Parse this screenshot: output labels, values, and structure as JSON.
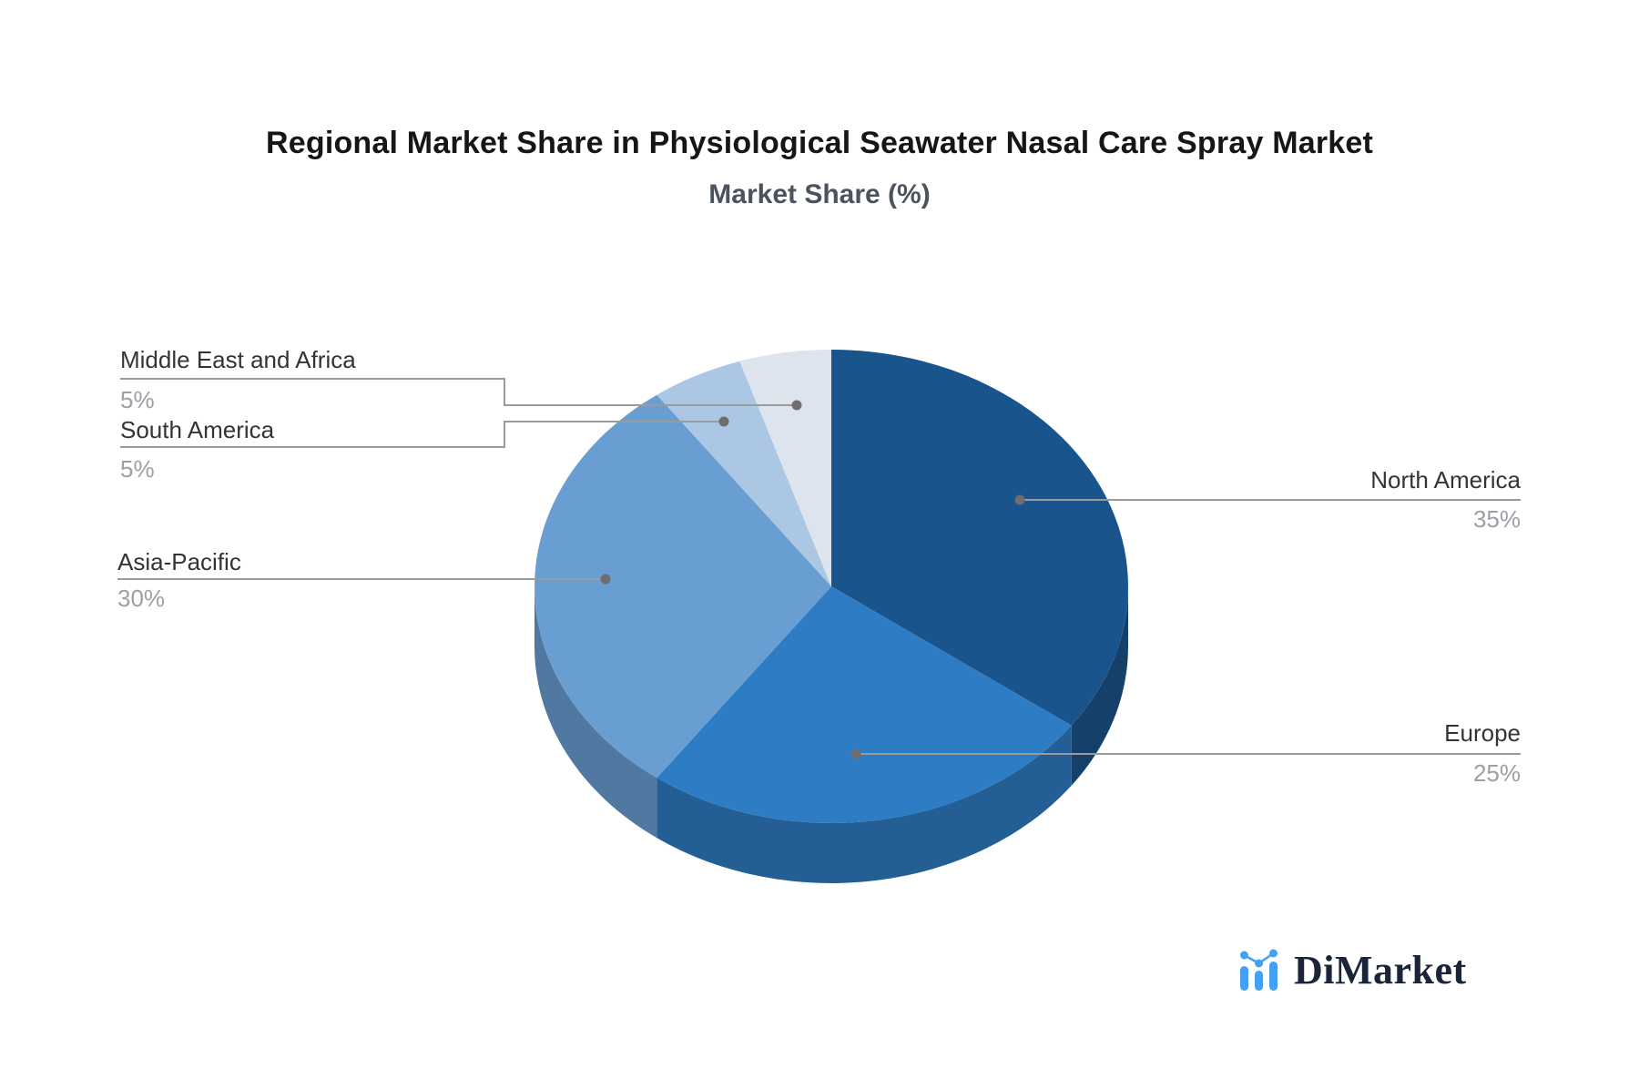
{
  "chart_data": {
    "type": "pie",
    "title": "Regional Market Share in Physiological Seawater Nasal Care Spray Market",
    "subtitle": "Market Share (%)",
    "unit": "%",
    "effect": "3d",
    "start_angle_deg": 0,
    "direction": "clockwise",
    "legend_position": "callout-labels",
    "series": [
      {
        "name": "North America",
        "value": 35,
        "label": "35%",
        "color": "#1a548c"
      },
      {
        "name": "Europe",
        "value": 25,
        "label": "25%",
        "color": "#2e7cc4"
      },
      {
        "name": "Asia-Pacific",
        "value": 30,
        "label": "30%",
        "color": "#699ed2"
      },
      {
        "name": "South America",
        "value": 5,
        "label": "5%",
        "color": "#abc7e3"
      },
      {
        "name": "Middle East and Africa",
        "value": 5,
        "label": "5%",
        "color": "#dde4ee"
      }
    ],
    "callout_line_color": "#9b9b9b",
    "callout_dot_color": "#6e6e6e"
  },
  "branding": {
    "logo_text": "DiMarket",
    "logo_text_color": "#1a2539",
    "logo_icon_color": "#42a1f5"
  }
}
